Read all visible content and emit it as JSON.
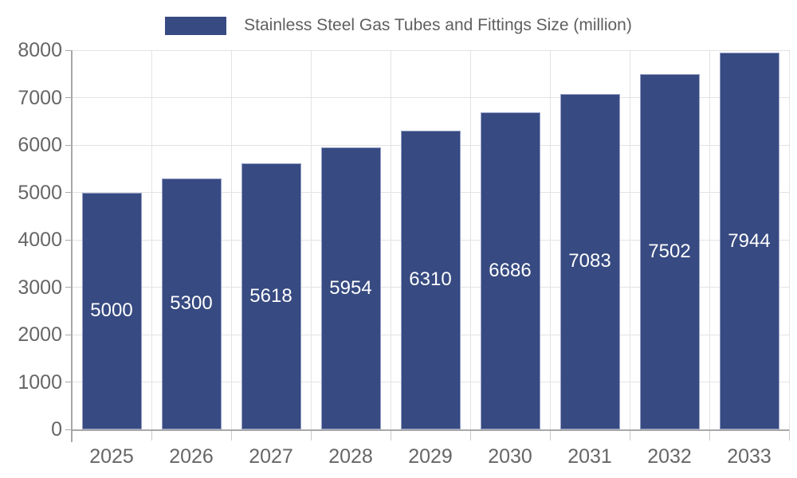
{
  "chart_data": {
    "type": "bar",
    "title": "Stainless Steel Gas Tubes and Fittings Size (million)",
    "legend": {
      "position": "top",
      "label": "Stainless Steel Gas Tubes and Fittings Size (million)"
    },
    "categories": [
      "2025",
      "2026",
      "2027",
      "2028",
      "2029",
      "2030",
      "2031",
      "2032",
      "2033"
    ],
    "values": [
      5000,
      5300,
      5618,
      5954,
      6310,
      6686,
      7083,
      7502,
      7944
    ],
    "bar_value_labels": [
      "5000",
      "5300",
      "5618",
      "5954",
      "6310",
      "6686",
      "7083",
      "7502",
      "7944"
    ],
    "bar_label_position": "inside-center",
    "xlabel": "",
    "ylabel": "",
    "ylim": [
      0,
      8000
    ],
    "ytick_step": 1000,
    "ytick_labels": [
      "0",
      "1000",
      "2000",
      "3000",
      "4000",
      "5000",
      "6000",
      "7000",
      "8000"
    ],
    "grid": true,
    "colors": {
      "bar": "#374A81",
      "bar_border": "#95A0C6",
      "bar_label": "#FFFFFF",
      "grid": "#E3E3E3",
      "axis": "#A8A8A8",
      "tick": "#C9C9C9",
      "axis_label": "#666666",
      "legend_text": "#5F5F5F",
      "background": "#FFFFFF"
    }
  }
}
